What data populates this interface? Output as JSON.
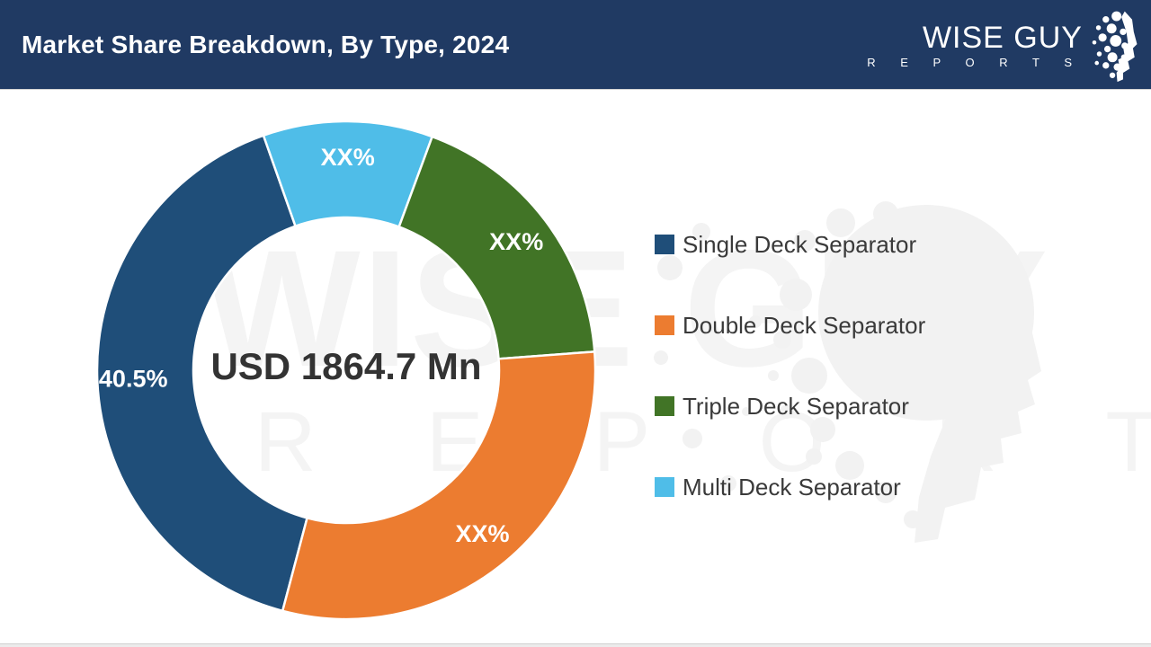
{
  "header": {
    "title": "Market Share Breakdown, By Type, 2024",
    "bg_color": "#203a63",
    "logo": {
      "name": "WISE GUY",
      "tagline": "R E P O R T S"
    }
  },
  "watermark": {
    "line1": "WISE GUY",
    "line2": "R E P O R T S"
  },
  "chart_data": {
    "type": "pie",
    "subtype": "donut",
    "title": "Market Share Breakdown, By Type, 2024",
    "center_label": "USD 1864.7 Mn",
    "units": "percent of market share",
    "start_angle_deg": 194.8,
    "direction": "clockwise",
    "slices": [
      {
        "name": "Single Deck Separator",
        "value_pct": 40.5,
        "label": "40.5%",
        "color": "#1f4e79"
      },
      {
        "name": "Multi Deck Separator",
        "value_pct": 11.0,
        "label": "XX%",
        "color": "#4fbde8"
      },
      {
        "name": "Triple Deck Separator",
        "value_pct": 18.2,
        "label": "XX%",
        "color": "#417426"
      },
      {
        "name": "Double Deck Separator",
        "value_pct": 30.3,
        "label": "XX%",
        "color": "#ec7c30"
      }
    ],
    "legend": [
      {
        "label": "Single Deck Separator",
        "color": "#1f4e79"
      },
      {
        "label": "Double Deck Separator",
        "color": "#ec7c30"
      },
      {
        "label": "Triple Deck Separator",
        "color": "#417426"
      },
      {
        "label": "Multi Deck Separator",
        "color": "#4fbde8"
      }
    ],
    "legend_position": "right"
  }
}
